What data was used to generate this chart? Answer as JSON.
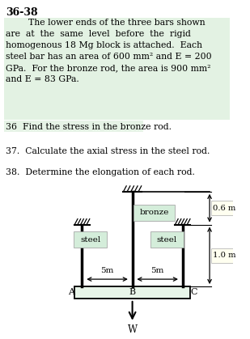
{
  "title": "36-38",
  "background_color": "#ffffff",
  "para_highlight_color": "#c8e6c9",
  "q36_highlight_color": "#c8e6c9",
  "paragraph": "        The lower ends of the three bars shown\nare  at  the  same  level  before  the  rigid\nhomogenous 18 Mg block is attached.  Each\nsteel bar has an area of 600 mm² and E = 200\nGPa.  For the bronze rod, the area is 900 mm²\nand E = 83 GPa.",
  "q36": "36  Find the stress in the bronze rod.",
  "q37": "37.  Calculate the axial stress in the steel rod.",
  "q38": "38.  Determine the elongation of each rod.",
  "diagram": {
    "bronze_label": "bronze",
    "steel_label": "steel",
    "dim_06": "0.6 m",
    "dim_10": "1.0 m",
    "dim_5m": "5m",
    "label_A": "A",
    "label_B": "B",
    "label_C": "C",
    "label_W": "W",
    "hatch_color": "#555555"
  }
}
